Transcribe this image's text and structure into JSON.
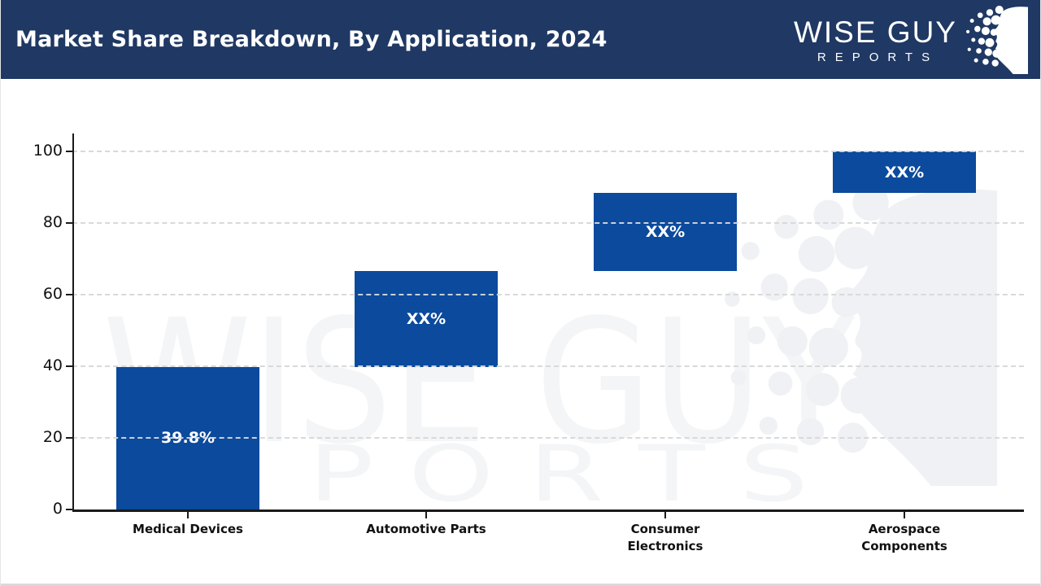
{
  "header": {
    "title": "Market Share Breakdown, By Application, 2024",
    "logo": {
      "line1": "WISE GUY",
      "line2": "REPORTS"
    }
  },
  "watermark": {
    "line1": "WISE GUY",
    "line2": "PORTS"
  },
  "colors": {
    "header_bg": "#1f3864",
    "bar": "#0b4a9d",
    "grid": "#d8d8d8",
    "axis": "#1a1a1a",
    "bar_label": "#ffffff",
    "watermark": "#f4f5f7"
  },
  "chart_data": {
    "type": "bar",
    "subtype": "waterfall-stacked-breakdown",
    "title": "Market Share Breakdown, By Application, 2024",
    "categories": [
      "Medical Devices",
      "Automotive Parts",
      "Consumer Electronics",
      "Aerospace Components"
    ],
    "segments": [
      {
        "category": "Medical Devices",
        "category_lines": [
          "Medical Devices"
        ],
        "start": 0,
        "end": 39.8,
        "label": "39.8%"
      },
      {
        "category": "Automotive Parts",
        "category_lines": [
          "Automotive Parts"
        ],
        "start": 39.8,
        "end": 66.5,
        "label": "XX%"
      },
      {
        "category": "Consumer Electronics",
        "category_lines": [
          "Consumer",
          "Electronics"
        ],
        "start": 66.5,
        "end": 88.4,
        "label": "XX%"
      },
      {
        "category": "Aerospace Components",
        "category_lines": [
          "Aerospace",
          "Components"
        ],
        "start": 88.4,
        "end": 100,
        "label": "XX%"
      }
    ],
    "ylabel": "",
    "xlabel": "",
    "yticks": [
      0,
      20,
      40,
      60,
      80,
      100
    ],
    "ytick_labels": [
      "0",
      "20",
      "40",
      "60",
      "80",
      "100"
    ],
    "ylim": [
      0,
      105
    ],
    "grid": "horizontal-dashed",
    "legend": "none"
  }
}
